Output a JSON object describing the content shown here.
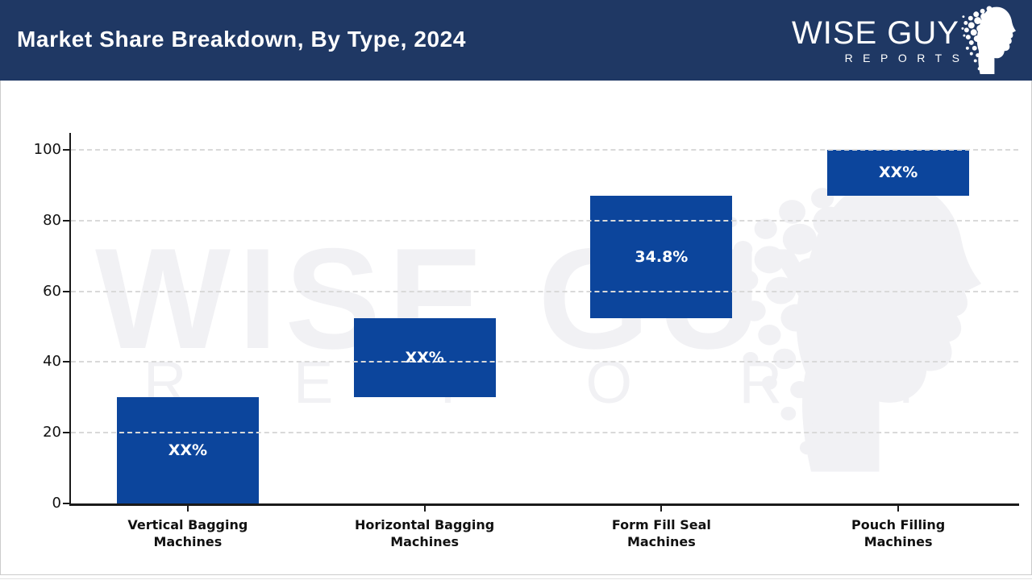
{
  "header": {
    "title": "Market Share Breakdown, By Type, 2024",
    "background_color": "#1f3864",
    "logo": {
      "name": "WISE GUY",
      "sub": "REPORTS"
    }
  },
  "watermark": {
    "line1": "WISE GUY",
    "line2": "R E P O R T S",
    "color": "#f1f1f4"
  },
  "chart_data": {
    "type": "bar",
    "variant": "floating-waterfall",
    "title": "Market Share Breakdown, By Type, 2024",
    "xlabel": "",
    "ylabel": "",
    "legend": "none",
    "grid": "horizontal-dashed",
    "ylim": [
      0,
      105
    ],
    "yticks": [
      0,
      20,
      40,
      60,
      80,
      100
    ],
    "bar_color": "#0c459c",
    "bar_label_color": "#ffffff",
    "grid_color": "#d9d9d9",
    "axis_color": "#1a1a1a",
    "categories": [
      "Vertical Bagging Machines",
      "Horizontal Bagging Machines",
      "Form Fill Seal Machines",
      "Pouch Filling Machines"
    ],
    "segments": [
      {
        "category": "Vertical Bagging Machines",
        "category_lines": [
          "Vertical Bagging",
          "Machines"
        ],
        "start": 0,
        "end": 30,
        "label": "XX%"
      },
      {
        "category": "Horizontal Bagging Machines",
        "category_lines": [
          "Horizontal Bagging",
          "Machines"
        ],
        "start": 30,
        "end": 52.3,
        "label": "XX%"
      },
      {
        "category": "Form Fill Seal Machines",
        "category_lines": [
          "Form Fill Seal",
          "Machines"
        ],
        "start": 52.3,
        "end": 87.1,
        "label": "34.8%"
      },
      {
        "category": "Pouch Filling Machines",
        "category_lines": [
          "Pouch Filling",
          "Machines"
        ],
        "start": 87.1,
        "end": 100,
        "label": "XX%"
      }
    ]
  }
}
